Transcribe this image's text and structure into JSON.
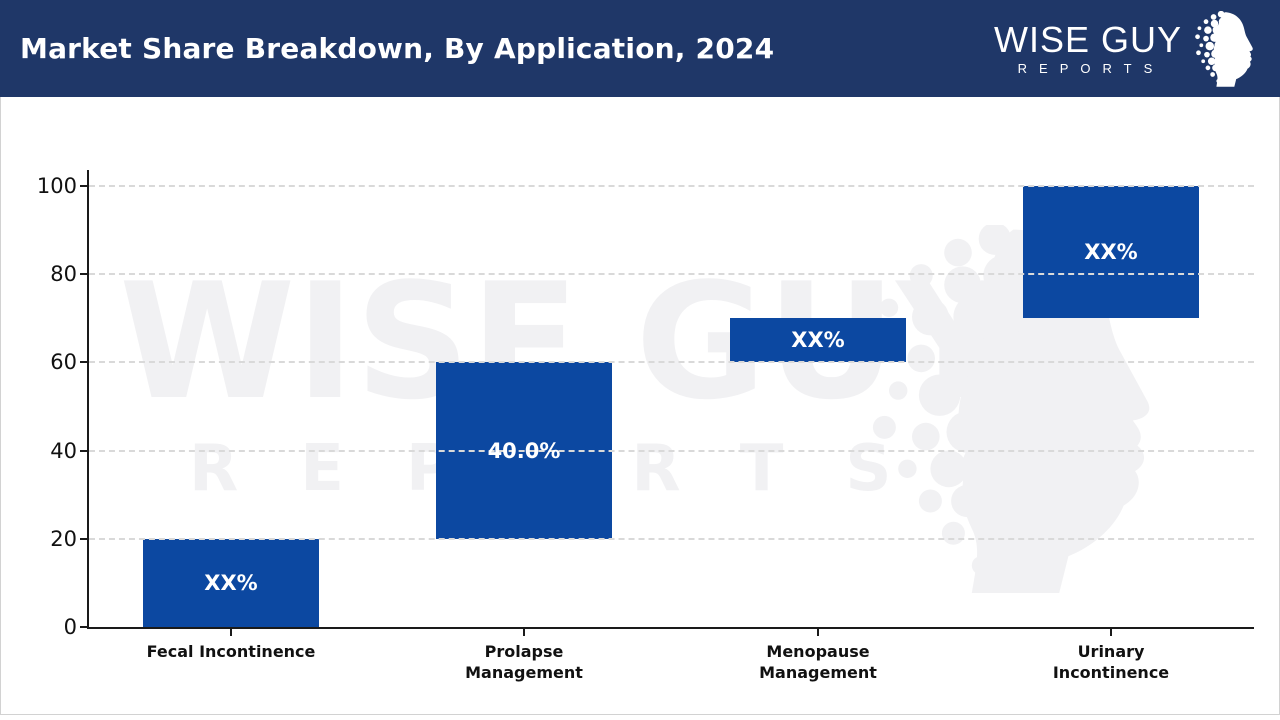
{
  "header": {
    "title": "Market Share Breakdown, By Application, 2024",
    "logo": {
      "line1": "WISE GUY",
      "line2": "REPORTS"
    }
  },
  "watermark": {
    "line1": "WISE GUY",
    "line2": "REPORTS"
  },
  "chart_data": {
    "type": "bar",
    "subtype": "floating-waterfall",
    "title": "Market Share Breakdown, By Application, 2024",
    "categories": [
      "Fecal Incontinence",
      "Prolapse Management",
      "Menopause Management",
      "Urinary Incontinence"
    ],
    "x_tick_labels": [
      "Fecal Incontinence",
      "Prolapse\nManagement",
      "Menopause\nManagement",
      "Urinary\nIncontinence"
    ],
    "segments": [
      {
        "category": "Fecal Incontinence",
        "start": 0,
        "end": 20,
        "label": "XX%"
      },
      {
        "category": "Prolapse Management",
        "start": 20,
        "end": 60,
        "label": "40.0%"
      },
      {
        "category": "Menopause Management",
        "start": 60,
        "end": 70,
        "label": "XX%"
      },
      {
        "category": "Urinary Incontinence",
        "start": 70,
        "end": 100,
        "label": "XX%"
      }
    ],
    "y_ticks": [
      0,
      20,
      40,
      60,
      80,
      100
    ],
    "ylim": [
      0,
      107
    ],
    "grid": "horizontal-dashed",
    "legend": "none",
    "colors": {
      "bar": "#0c48a1",
      "grid": "#d9d9d9",
      "axis": "#1a1a1a",
      "bar_label": "#ffffff",
      "header_bg": "#1f3768",
      "watermark": "#f1f1f3"
    }
  }
}
